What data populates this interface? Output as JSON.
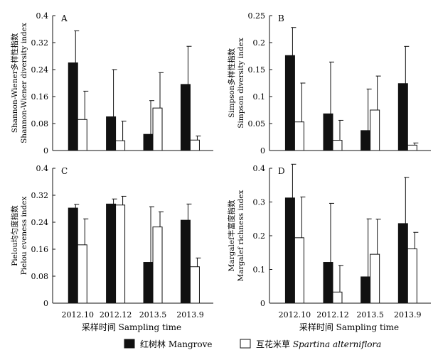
{
  "chart_data": [
    {
      "type": "bar",
      "panel_label": "A",
      "ylabel_lines": [
        "Shannon-Wiener多样性指数",
        "Shannon-Wiener diversity index"
      ],
      "ylim": [
        0,
        0.4
      ],
      "yticks": [
        "0",
        "0.08",
        "0.16",
        "0.24",
        "0.32",
        "0.4"
      ],
      "tick_values": [
        0,
        0.08,
        0.16,
        0.24,
        0.32,
        0.4
      ],
      "categories": [
        "2012.10",
        "2012.12",
        "2013.5",
        "2013.9"
      ],
      "series": [
        {
          "name": "红树林 Mangrove",
          "values": [
            0.26,
            0.1,
            0.048,
            0.196
          ],
          "errors": [
            0.095,
            0.14,
            0.1,
            0.113
          ]
        },
        {
          "name": "互花米草 Spartina alterniflora",
          "values": [
            0.092,
            0.029,
            0.126,
            0.031
          ],
          "errors": [
            0.084,
            0.058,
            0.105,
            0.012
          ]
        }
      ],
      "show_xticklabels": false
    },
    {
      "type": "bar",
      "panel_label": "B",
      "ylabel_lines": [
        "Simpson多样性指数",
        "Simpson diversity index"
      ],
      "ylim": [
        0,
        0.25
      ],
      "yticks": [
        "0",
        "0.05",
        "0.1",
        "0.15",
        "0.2",
        "0.25"
      ],
      "tick_values": [
        0,
        0.05,
        0.1,
        0.15,
        0.2,
        0.25
      ],
      "categories": [
        "2012.10",
        "2012.12",
        "2013.5",
        "2013.9"
      ],
      "series": [
        {
          "name": "红树林 Mangrove",
          "values": [
            0.176,
            0.068,
            0.037,
            0.124
          ],
          "errors": [
            0.052,
            0.096,
            0.077,
            0.069
          ]
        },
        {
          "name": "互花米草 Spartina alterniflora",
          "values": [
            0.053,
            0.019,
            0.075,
            0.01
          ],
          "errors": [
            0.072,
            0.037,
            0.063,
            0.004
          ]
        }
      ],
      "show_xticklabels": false
    },
    {
      "type": "bar",
      "panel_label": "C",
      "ylabel_lines": [
        "Pielou均匀度指数",
        "Pielou eveness  index"
      ],
      "ylim": [
        0,
        0.4
      ],
      "yticks": [
        "0",
        "0.08",
        "0.16",
        "0.24",
        "0.32",
        "0.4"
      ],
      "tick_values": [
        0,
        0.08,
        0.16,
        0.24,
        0.32,
        0.4
      ],
      "categories": [
        "2012.10",
        "2012.12",
        "2013.5",
        "2013.9"
      ],
      "series": [
        {
          "name": "红树林 Mangrove",
          "values": [
            0.282,
            0.294,
            0.121,
            0.246
          ],
          "errors": [
            0.011,
            0.015,
            0.165,
            0.048
          ]
        },
        {
          "name": "互花米草 Spartina alterniflora",
          "values": [
            0.173,
            0.291,
            0.226,
            0.108
          ],
          "errors": [
            0.077,
            0.026,
            0.045,
            0.026
          ]
        }
      ],
      "show_xticklabels": true
    },
    {
      "type": "bar",
      "panel_label": "D",
      "ylabel_lines": [
        "Margalef丰富度指数",
        "Margalef richness  index"
      ],
      "ylim": [
        0,
        0.4
      ],
      "yticks": [
        "0",
        "0.1",
        "0.2",
        "0.3",
        "0.4"
      ],
      "tick_values": [
        0,
        0.1,
        0.2,
        0.3,
        0.4
      ],
      "categories": [
        "2012.10",
        "2012.12",
        "2013.5",
        "2013.9"
      ],
      "series": [
        {
          "name": "红树林 Mangrove",
          "values": [
            0.312,
            0.121,
            0.078,
            0.236
          ],
          "errors": [
            0.1,
            0.175,
            0.172,
            0.137
          ]
        },
        {
          "name": "互花米草 Spartina alterniflora",
          "values": [
            0.194,
            0.033,
            0.145,
            0.161
          ],
          "errors": [
            0.121,
            0.079,
            0.104,
            0.049
          ]
        }
      ],
      "show_xticklabels": true
    }
  ],
  "xlabel": "采样时间 Sampling time",
  "legend": {
    "items": [
      {
        "label": "红树林 Mangrove",
        "color": "#111111"
      },
      {
        "prefix": "互花米草 ",
        "label_italic": "Spartina alterniflora",
        "color": "#ffffff"
      }
    ]
  }
}
